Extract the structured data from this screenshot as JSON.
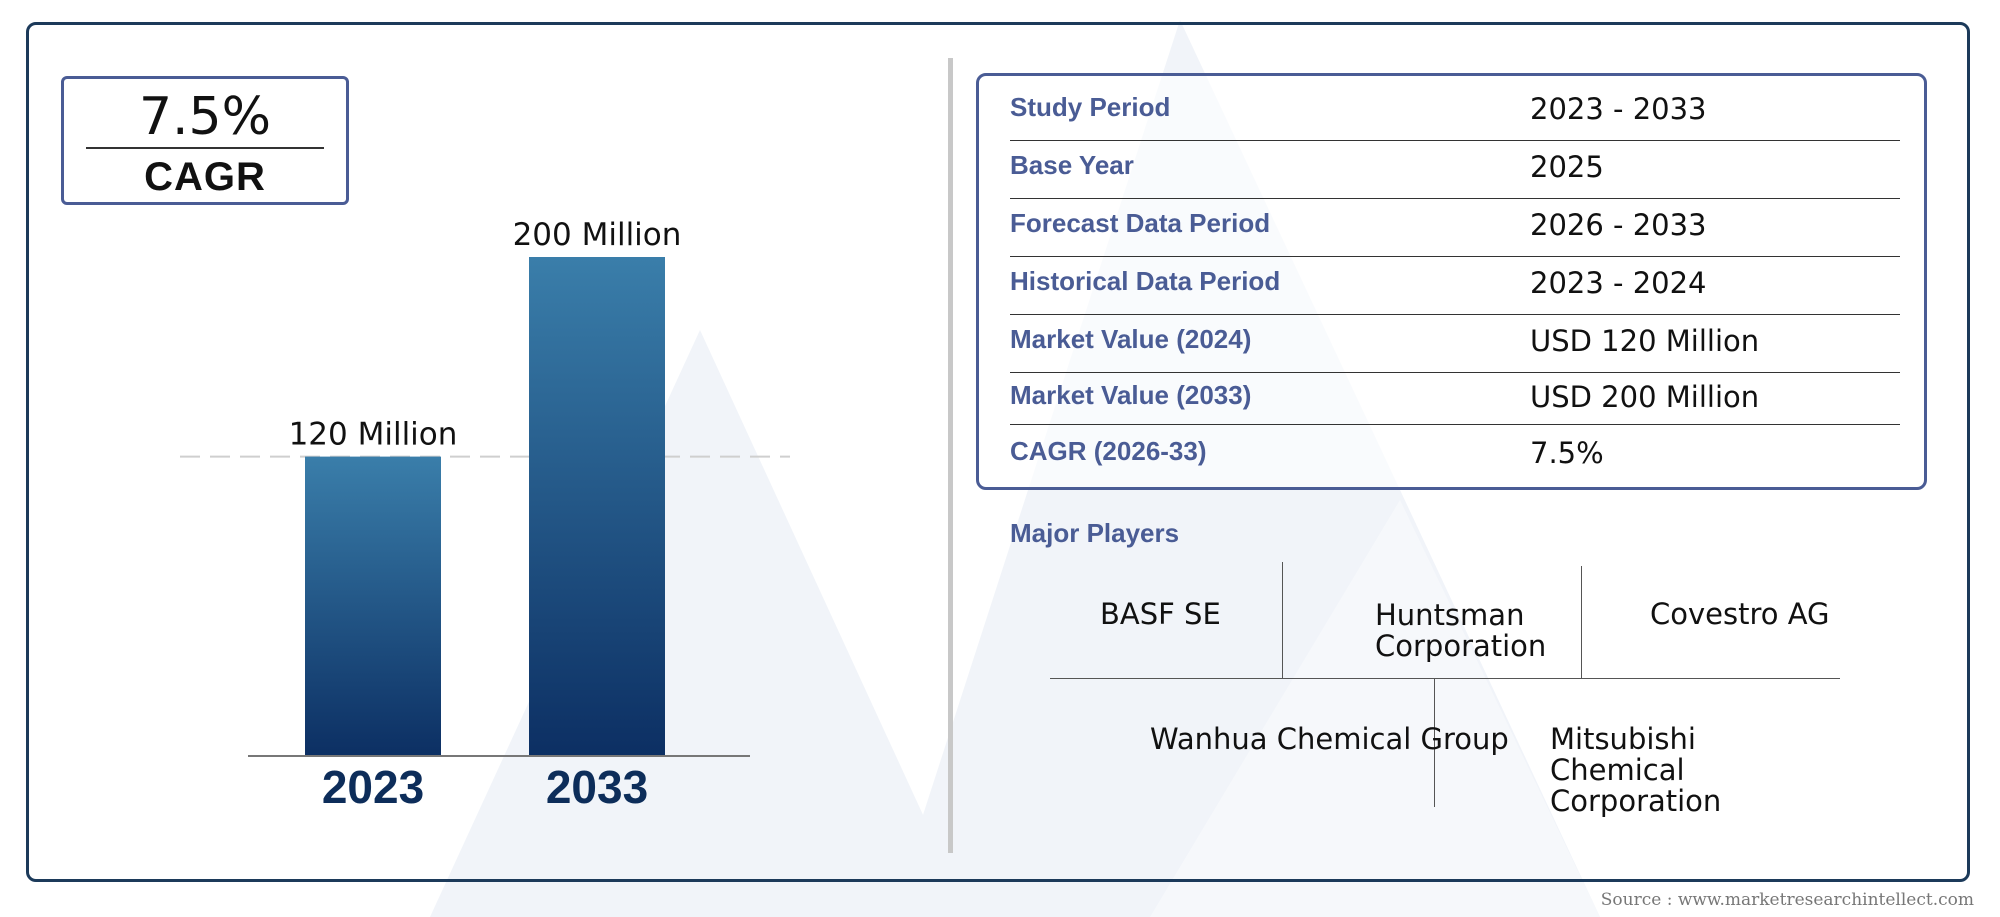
{
  "cagr": {
    "value": "7.5%",
    "label": "CAGR"
  },
  "chart_data": {
    "type": "bar",
    "categories": [
      "2023",
      "2033"
    ],
    "values": [
      120,
      200
    ],
    "data_labels": [
      "120 Million",
      "200 Million"
    ],
    "unit": "Million",
    "ylim": [
      0,
      200
    ],
    "reference_line": 120,
    "bar_colors": [
      "#3a7eaa",
      "#0c2f63"
    ]
  },
  "summary_table": [
    {
      "label": "Study Period",
      "value": "2023 - 2033"
    },
    {
      "label": "Base Year",
      "value": "2025"
    },
    {
      "label": "Forecast Data Period",
      "value": "2026 - 2033"
    },
    {
      "label": "Historical Data Period",
      "value": "2023 - 2024"
    },
    {
      "label": "Market Value (2024)",
      "value": "USD 120 Million"
    },
    {
      "label": "Market Value (2033)",
      "value": "USD 200 Million"
    },
    {
      "label": "CAGR (2026-33)",
      "value": "7.5%"
    }
  ],
  "major_players": {
    "title": "Major Players",
    "row1": [
      "BASF SE",
      "Huntsman Corporation",
      "Covestro AG"
    ],
    "row2": [
      "Wanhua Chemical Group",
      "Mitsubishi Chemical Corporation"
    ]
  },
  "source": "Source : www.marketresearchintellect.com",
  "colors": {
    "accent": "#4a5c95",
    "frame": "#1c3a5a",
    "year_label": "#0d2d5a"
  }
}
